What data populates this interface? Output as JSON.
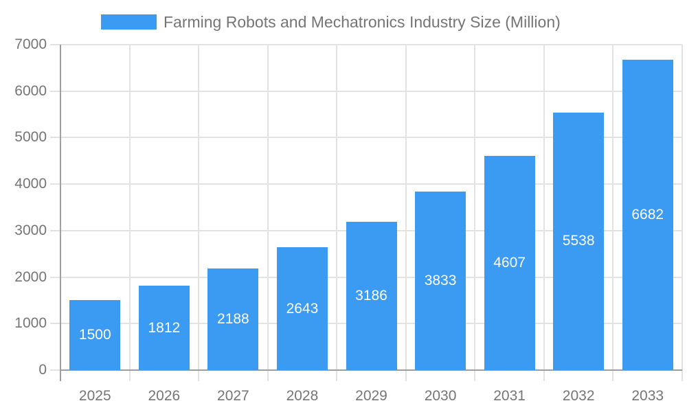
{
  "chart_data": {
    "type": "bar",
    "title": "Farming Robots and Mechatronics Industry Size (Million)",
    "xlabel": "",
    "ylabel": "",
    "categories": [
      "2025",
      "2026",
      "2027",
      "2028",
      "2029",
      "2030",
      "2031",
      "2032",
      "2033"
    ],
    "values": [
      1500,
      1812,
      2188,
      2643,
      3186,
      3833,
      4607,
      5538,
      6682
    ],
    "bar_labels": [
      "1500",
      "1812",
      "2188",
      "2643",
      "3186",
      "3833",
      "4607",
      "5538",
      "6682"
    ],
    "ylim": [
      0,
      7000
    ],
    "yticks": [
      0,
      1000,
      2000,
      3000,
      4000,
      5000,
      6000,
      7000
    ],
    "ytick_labels": [
      "0",
      "1000",
      "2000",
      "3000",
      "4000",
      "5000",
      "6000",
      "7000"
    ],
    "grid": true,
    "legend_position": "top",
    "legend_entries": [
      "Farming Robots and Mechatronics Industry Size (Million)"
    ],
    "colors": {
      "bar": "#3b9af2",
      "bar_label": "#ffffff",
      "grid": "#e2e2e2",
      "axis": "#9e9e9e",
      "text": "#757575"
    }
  }
}
